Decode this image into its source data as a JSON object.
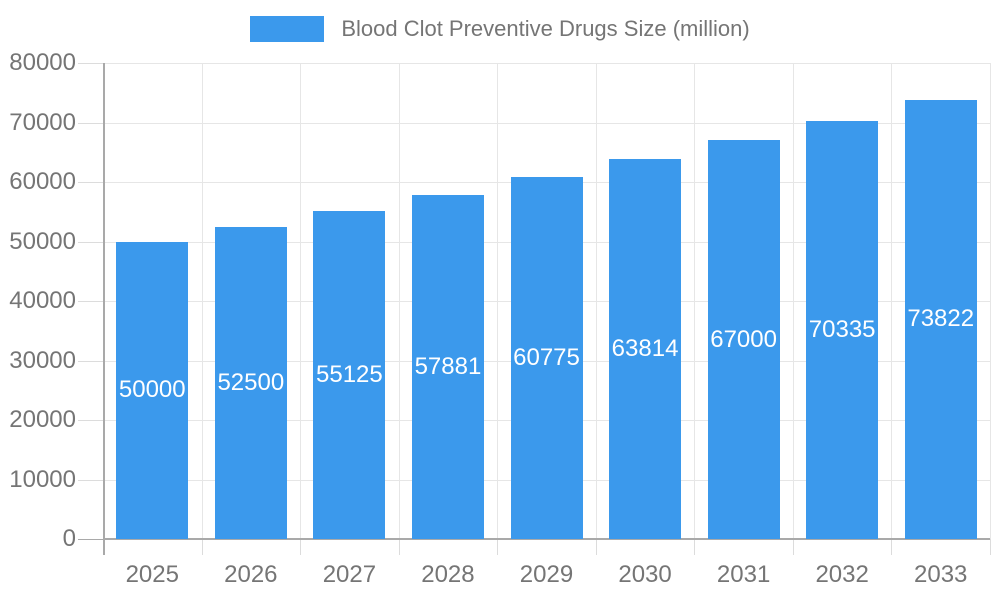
{
  "legend": {
    "label": "Blood Clot Preventive Drugs Size (million)",
    "position": "top-center"
  },
  "colors": {
    "bar": "#3B99EC",
    "grid": "#E6E6E6",
    "axis": "#A9A9A9",
    "tick": "#DCDCDC",
    "text": "#757575",
    "value_text": "#FFFFFF",
    "background": "#FFFFFF"
  },
  "chart_data": {
    "type": "bar",
    "title": "",
    "categories": [
      "2025",
      "2026",
      "2027",
      "2028",
      "2029",
      "2030",
      "2031",
      "2032",
      "2033"
    ],
    "series": [
      {
        "name": "Blood Clot Preventive Drugs Size (million)",
        "values": [
          50000,
          52500,
          55125,
          57881,
          60775,
          63814,
          67000,
          70335,
          73822
        ]
      }
    ],
    "value_labels": [
      "50000",
      "52500",
      "55125",
      "57881",
      "60775",
      "63814",
      "67000",
      "70335",
      "73822"
    ],
    "value_label_position": "inside-center",
    "xlabel": "",
    "ylabel": "",
    "ylim": [
      0,
      80000
    ],
    "ytick_interval": 10000,
    "ytick_labels": [
      "0",
      "10000",
      "20000",
      "30000",
      "40000",
      "50000",
      "60000",
      "70000",
      "80000"
    ],
    "grid": true,
    "grid_vertical": true,
    "legend_position": "top",
    "bar_color": "#3B99EC"
  }
}
